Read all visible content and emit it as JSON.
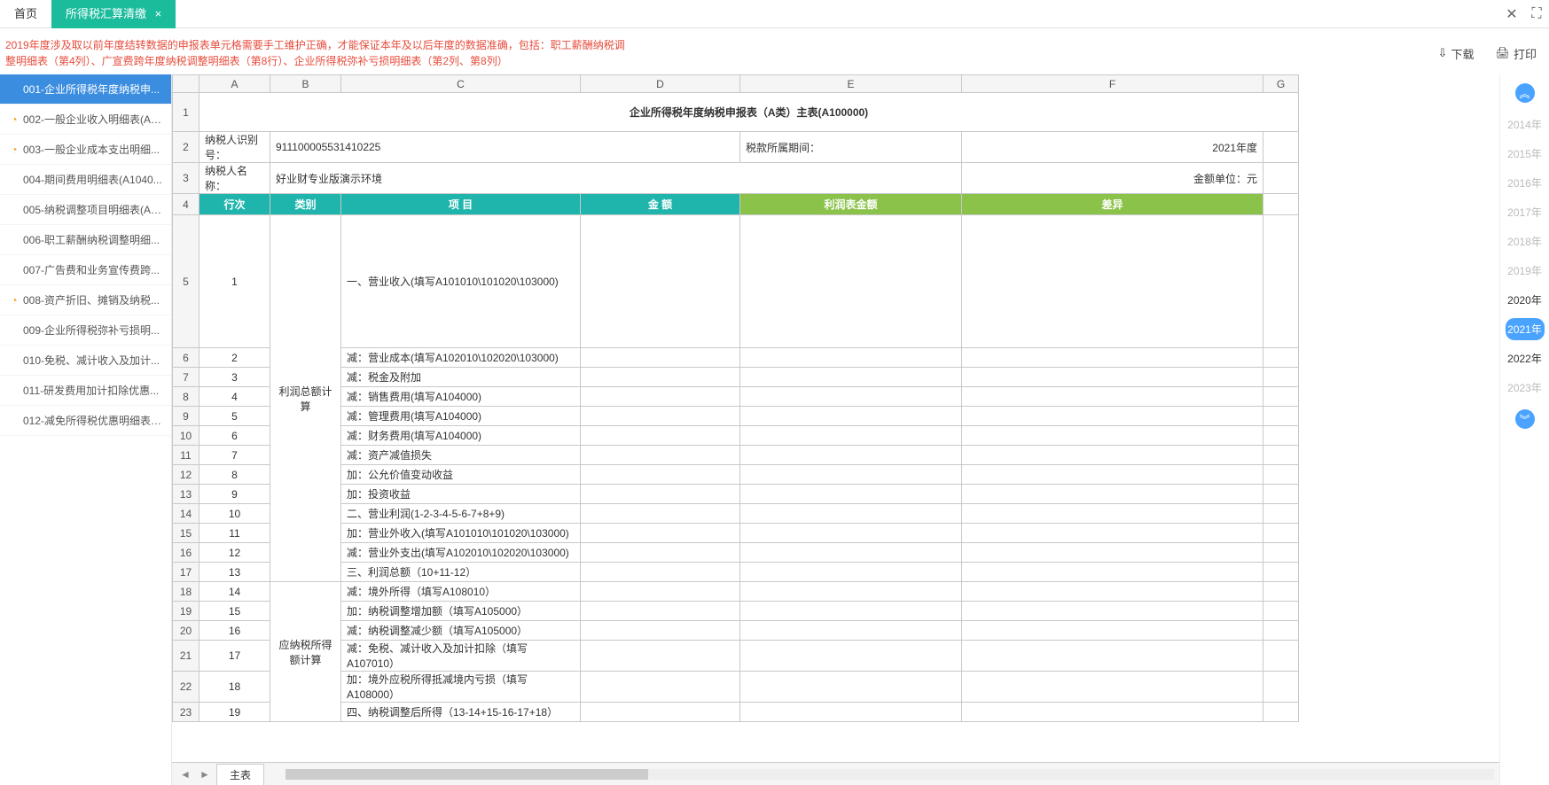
{
  "topbar": {
    "home": "首页",
    "active_tab": "所得税汇算清缴"
  },
  "notice": "2019年度涉及取以前年度结转数据的申报表单元格需要手工维护正确，才能保证本年及以后年度的数据准确，包括：职工薪酬纳税调整明细表（第4列）、广宣费跨年度纳税调整明细表（第8行）、企业所得税弥补亏损明细表（第2列、第8列）",
  "actions": {
    "download": "下载",
    "print": "打印"
  },
  "sidebar": {
    "items": [
      {
        "label": "001-企业所得税年度纳税申...",
        "icon": "",
        "active": true
      },
      {
        "label": "002-一般企业收入明细表(A1...",
        "icon": "orange"
      },
      {
        "label": "003-一般企业成本支出明细...",
        "icon": "orange"
      },
      {
        "label": "004-期间费用明细表(A1040...",
        "icon": ""
      },
      {
        "label": "005-纳税调整项目明细表(A1...",
        "icon": ""
      },
      {
        "label": "006-职工薪酬纳税调整明细...",
        "icon": ""
      },
      {
        "label": "007-广告费和业务宣传费跨...",
        "icon": ""
      },
      {
        "label": "008-资产折旧、摊销及纳税...",
        "icon": "orange"
      },
      {
        "label": "009-企业所得税弥补亏损明...",
        "icon": ""
      },
      {
        "label": "010-免税、减计收入及加计...",
        "icon": ""
      },
      {
        "label": "011-研发费用加计扣除优惠...",
        "icon": ""
      },
      {
        "label": "012-减免所得税优惠明细表(...",
        "icon": ""
      }
    ]
  },
  "sheet": {
    "columns": [
      "A",
      "B",
      "C",
      "D",
      "E",
      "F",
      "G"
    ],
    "title": "企业所得税年度纳税申报表（A类）主表(A100000)",
    "taxpayer_id_label": "纳税人识别号：",
    "taxpayer_id": "911100005531410225",
    "period_label": "税款所属期间：",
    "period_value": "2021年度",
    "taxpayer_name_label": "纳税人名称：",
    "taxpayer_name": "好业财专业版演示环境",
    "unit_label": "金额单位：元",
    "headers": {
      "seq": "行次",
      "category": "类别",
      "item": "项    目",
      "amount": "金    额",
      "profit": "利润表金额",
      "diff": "差异"
    },
    "category_block1": "利润总额计算",
    "category_block2": "应纳税所得额计算",
    "rows": [
      {
        "rn": 5,
        "seq": "1",
        "item": "一、营业收入(填写A101010\\101020\\103000)",
        "tall": true
      },
      {
        "rn": 6,
        "seq": "2",
        "item": "减：营业成本(填写A102010\\102020\\103000)"
      },
      {
        "rn": 7,
        "seq": "3",
        "item": "减：税金及附加"
      },
      {
        "rn": 8,
        "seq": "4",
        "item": "减：销售费用(填写A104000)"
      },
      {
        "rn": 9,
        "seq": "5",
        "item": "减：管理费用(填写A104000)"
      },
      {
        "rn": 10,
        "seq": "6",
        "item": "减：财务费用(填写A104000)"
      },
      {
        "rn": 11,
        "seq": "7",
        "item": "减：资产减值损失"
      },
      {
        "rn": 12,
        "seq": "8",
        "item": "加：公允价值变动收益"
      },
      {
        "rn": 13,
        "seq": "9",
        "item": "加：投资收益"
      },
      {
        "rn": 14,
        "seq": "10",
        "item": "二、营业利润(1-2-3-4-5-6-7+8+9)"
      },
      {
        "rn": 15,
        "seq": "11",
        "item": "加：营业外收入(填写A101010\\101020\\103000)"
      },
      {
        "rn": 16,
        "seq": "12",
        "item": "减：营业外支出(填写A102010\\102020\\103000)"
      },
      {
        "rn": 17,
        "seq": "13",
        "item": "三、利润总额（10+11-12）"
      },
      {
        "rn": 18,
        "seq": "14",
        "item": "减：境外所得（填写A108010）"
      },
      {
        "rn": 19,
        "seq": "15",
        "item": "加：纳税调整增加额（填写A105000）"
      },
      {
        "rn": 20,
        "seq": "16",
        "item": "减：纳税调整减少额（填写A105000）"
      },
      {
        "rn": 21,
        "seq": "17",
        "item": "减：免税、减计收入及加计扣除（填写A107010）"
      },
      {
        "rn": 22,
        "seq": "18",
        "item": "加：境外应税所得抵减境内亏损（填写A108000）"
      },
      {
        "rn": 23,
        "seq": "19",
        "item": "四、纳税调整后所得（13-14+15-16-17+18）"
      }
    ],
    "sheet_tab": "主表"
  },
  "years": {
    "list": [
      "2014年",
      "2015年",
      "2016年",
      "2017年",
      "2018年",
      "2019年",
      "2020年",
      "2021年",
      "2022年",
      "2023年"
    ],
    "enabled": [
      "2020年",
      "2021年",
      "2022年"
    ],
    "active": "2021年"
  },
  "colors": {
    "accent": "#1abc9c",
    "header_cyan": "#1fb5ad",
    "header_green": "#8bc34a",
    "notice": "#e74c3c",
    "sidebar_active": "#3b8de0",
    "year_active": "#4aa3ff"
  }
}
